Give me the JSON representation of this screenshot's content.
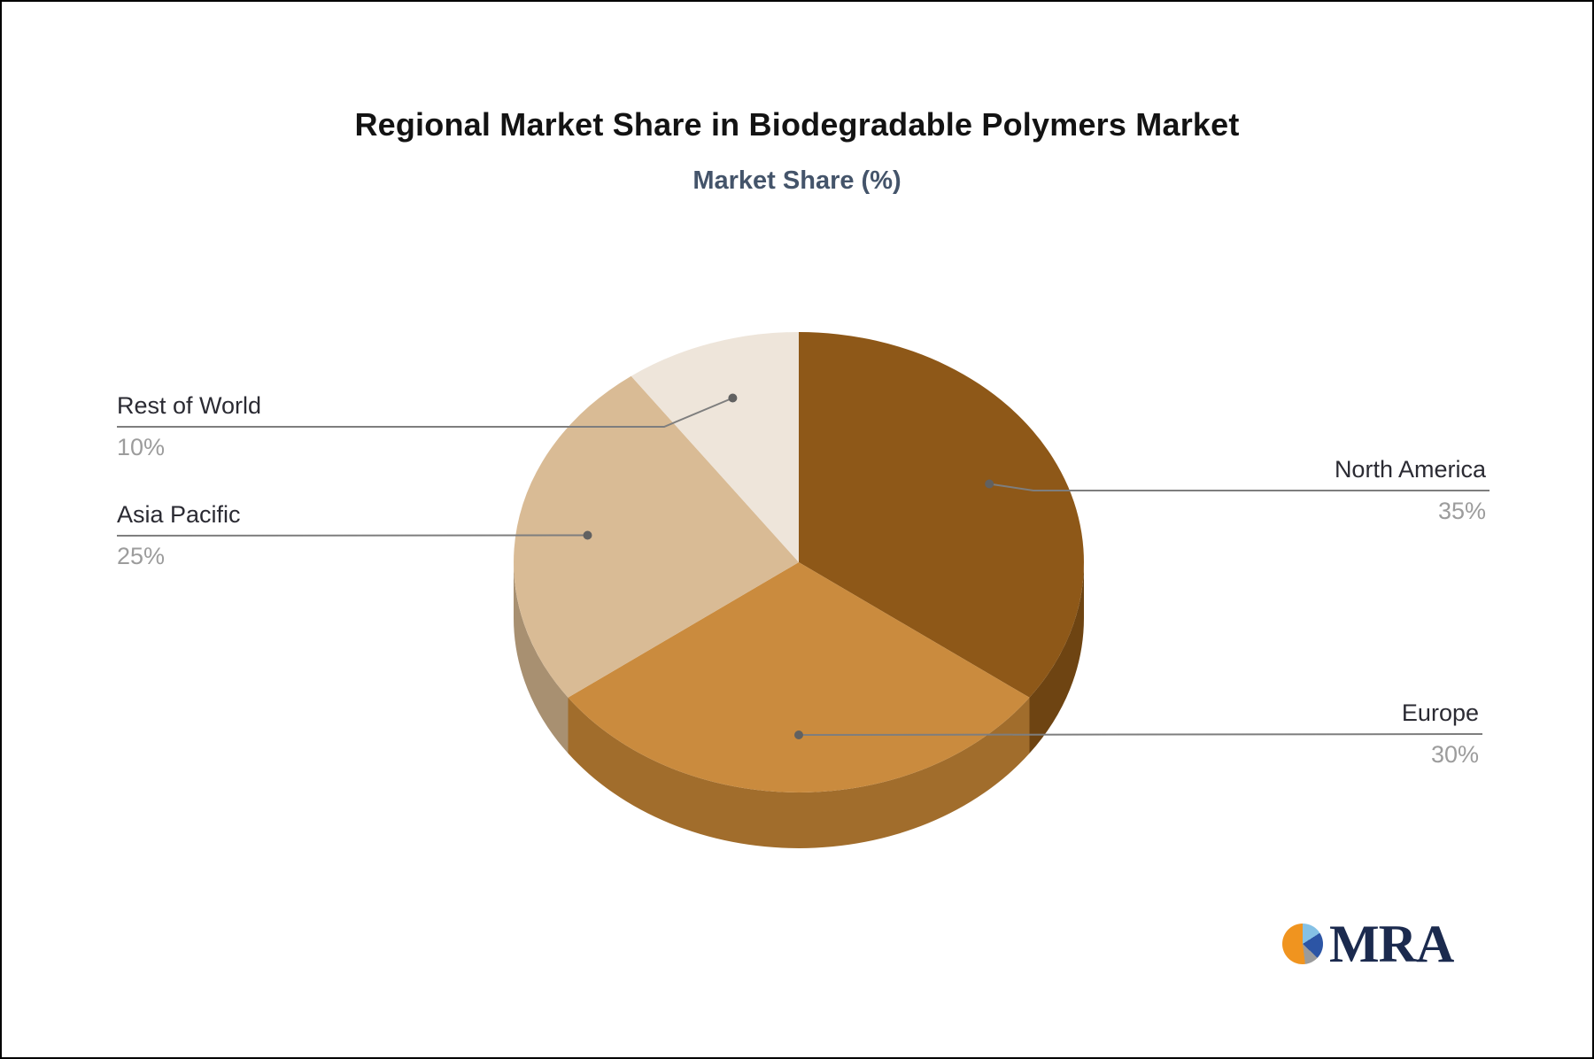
{
  "header": {
    "title": "Regional Market Share in Biodegradable Polymers Market",
    "subtitle": "Market Share (%)"
  },
  "chart_data": {
    "type": "pie",
    "title": "Regional Market Share in Biodegradable Polymers Market",
    "subtitle": "Market Share (%)",
    "unit": "%",
    "style": "3d-pie",
    "start_angle_deg": 90,
    "direction": "clockwise",
    "legend": "none",
    "labels_style": "callout-with-leader-lines",
    "slices": [
      {
        "label": "North America",
        "value": 35,
        "value_label": "35%",
        "color": "#8E5818",
        "side_color": "#6E4412",
        "callout_side": "right"
      },
      {
        "label": "Europe",
        "value": 30,
        "value_label": "30%",
        "color": "#CA8B3E",
        "side_color": "#A16D2C",
        "callout_side": "right"
      },
      {
        "label": "Asia Pacific",
        "value": 25,
        "value_label": "25%",
        "color": "#D9BB95",
        "side_color": "#A89071",
        "callout_side": "left"
      },
      {
        "label": "Rest of World",
        "value": 10,
        "value_label": "10%",
        "color": "#EEE5DA",
        "side_color": "#C9BBA8",
        "callout_side": "left"
      }
    ]
  },
  "colors": {
    "background": "#FFFFFF",
    "title_text": "#131313",
    "subtitle_text": "#44546A",
    "label_text": "#2B2B33",
    "value_text": "#9C9C9C",
    "connector_line": "#7E7E7E",
    "connector_dot": "#616161"
  },
  "logo": {
    "text": "MRA",
    "text_color": "#1B2A4E",
    "pie_colors": [
      "#85C1E5",
      "#2C55A5",
      "#9B9B9B",
      "#F0941F"
    ]
  }
}
